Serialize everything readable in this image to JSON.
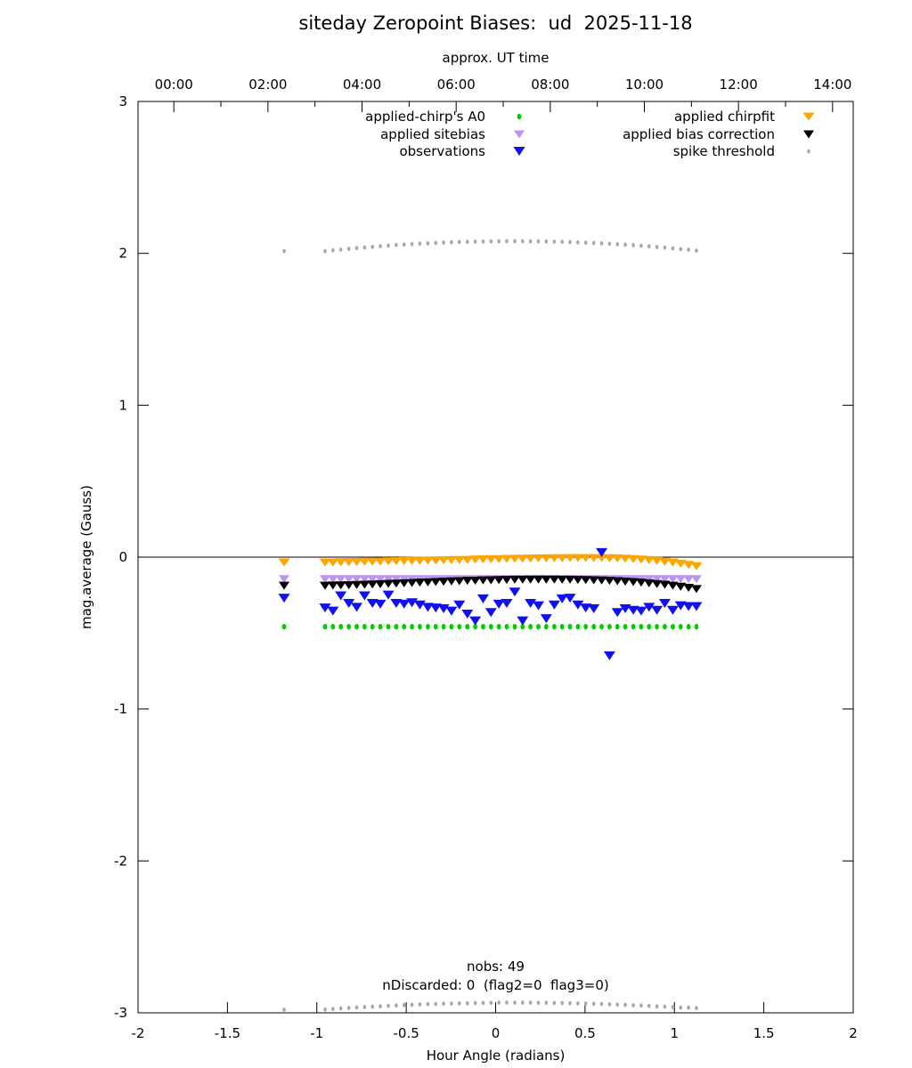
{
  "title": "siteday Zeropoint Biases:  ud  2025-11-18",
  "top_axis": {
    "label": "approx. UT time",
    "tick_labels": [
      "00:00",
      "02:00",
      "04:00",
      "06:00",
      "08:00",
      "10:00",
      "12:00",
      "14:00"
    ]
  },
  "y_axis": {
    "label": "mag.average (Gauss)",
    "tick_labels": [
      "3",
      "2",
      "1",
      "0",
      "-1",
      "-2",
      "-3"
    ],
    "tick_values": [
      3,
      2,
      1,
      0,
      -1,
      -2,
      -3
    ]
  },
  "x_axis": {
    "label": "Hour Angle (radians)",
    "tick_labels": [
      "-2",
      "-1.5",
      "-1",
      "-0.5",
      "0",
      "0.5",
      "1",
      "1.5",
      "2"
    ],
    "tick_values": [
      -2,
      -1.5,
      -1,
      -0.5,
      0,
      0.5,
      1,
      1.5,
      2
    ]
  },
  "annotations": {
    "nobs": "nobs: 49",
    "ndiscarded": "nDiscarded: 0  (flag2=0  flag3=0)"
  },
  "legend": {
    "left": [
      {
        "label": "applied-chirp's A0",
        "series_index": 0
      },
      {
        "label": "applied sitebias",
        "series_index": 2
      },
      {
        "label": "observations",
        "series_index": 4
      }
    ],
    "right": [
      {
        "label": "applied chirpfit",
        "series_index": 1
      },
      {
        "label": "applied bias correction",
        "series_index": 3
      },
      {
        "label": "spike threshold",
        "series_index": 5
      }
    ]
  },
  "chart_data": {
    "type": "scatter",
    "title": "siteday Zeropoint Biases:  ud  2025-11-18",
    "xlabel": "Hour Angle (radians)",
    "x2label": "approx. UT time",
    "ylabel": "mag.average (Gauss)",
    "xlim": [
      -2,
      2
    ],
    "ylim": [
      -3,
      3
    ],
    "grid": false,
    "legend_position": "top-inside",
    "nobs": 49,
    "ndiscarded": 0,
    "x": [
      -1.183,
      -0.954,
      -0.91,
      -0.866,
      -0.821,
      -0.777,
      -0.733,
      -0.689,
      -0.645,
      -0.6,
      -0.556,
      -0.512,
      -0.468,
      -0.424,
      -0.379,
      -0.335,
      -0.291,
      -0.247,
      -0.203,
      -0.158,
      -0.114,
      -0.07,
      -0.026,
      0.018,
      0.062,
      0.107,
      0.151,
      0.195,
      0.239,
      0.283,
      0.328,
      0.372,
      0.416,
      0.46,
      0.504,
      0.549,
      0.593,
      0.637,
      0.681,
      0.725,
      0.77,
      0.814,
      0.858,
      0.902,
      0.946,
      0.991,
      1.035,
      1.079,
      1.123
    ],
    "series": [
      {
        "key": "a0",
        "name": "applied-chirp's A0",
        "marker": "dot",
        "color": "#00cd00",
        "values": [
          -0.458,
          -0.458,
          -0.458,
          -0.458,
          -0.458,
          -0.458,
          -0.458,
          -0.458,
          -0.458,
          -0.458,
          -0.458,
          -0.458,
          -0.458,
          -0.458,
          -0.458,
          -0.458,
          -0.458,
          -0.458,
          -0.458,
          -0.458,
          -0.458,
          -0.458,
          -0.458,
          -0.458,
          -0.458,
          -0.458,
          -0.458,
          -0.458,
          -0.458,
          -0.458,
          -0.458,
          -0.458,
          -0.458,
          -0.458,
          -0.458,
          -0.458,
          -0.458,
          -0.458,
          -0.458,
          -0.458,
          -0.458,
          -0.458,
          -0.458,
          -0.458,
          -0.458,
          -0.458,
          -0.458,
          -0.458,
          -0.458
        ]
      },
      {
        "key": "chirpfit",
        "name": "applied chirpfit",
        "marker": "triangle-down",
        "color": "#ffa500",
        "values": [
          -0.035,
          -0.035,
          -0.035,
          -0.034,
          -0.033,
          -0.032,
          -0.031,
          -0.03,
          -0.029,
          -0.028,
          -0.027,
          -0.026,
          -0.025,
          -0.024,
          -0.023,
          -0.022,
          -0.021,
          -0.02,
          -0.019,
          -0.018,
          -0.016,
          -0.015,
          -0.014,
          -0.013,
          -0.012,
          -0.011,
          -0.01,
          -0.009,
          -0.008,
          -0.008,
          -0.007,
          -0.007,
          -0.006,
          -0.006,
          -0.006,
          -0.006,
          -0.006,
          -0.007,
          -0.008,
          -0.01,
          -0.013,
          -0.016,
          -0.02,
          -0.025,
          -0.03,
          -0.036,
          -0.043,
          -0.051,
          -0.06
        ]
      },
      {
        "key": "sitebias",
        "name": "applied sitebias",
        "marker": "triangle-down",
        "color": "#bf94f0",
        "values": [
          -0.145,
          -0.145,
          -0.145,
          -0.145,
          -0.145,
          -0.145,
          -0.145,
          -0.145,
          -0.145,
          -0.145,
          -0.145,
          -0.145,
          -0.145,
          -0.145,
          -0.145,
          -0.145,
          -0.145,
          -0.145,
          -0.145,
          -0.145,
          -0.145,
          -0.145,
          -0.145,
          -0.145,
          -0.145,
          -0.145,
          -0.145,
          -0.145,
          -0.145,
          -0.145,
          -0.145,
          -0.145,
          -0.145,
          -0.145,
          -0.145,
          -0.145,
          -0.145,
          -0.145,
          -0.145,
          -0.145,
          -0.145,
          -0.145,
          -0.145,
          -0.145,
          -0.145,
          -0.145,
          -0.145,
          -0.145,
          -0.145
        ]
      },
      {
        "key": "bias_correction",
        "name": "applied bias correction",
        "marker": "triangle-down",
        "color": "#000000",
        "values": [
          -0.188,
          -0.188,
          -0.187,
          -0.186,
          -0.185,
          -0.183,
          -0.182,
          -0.18,
          -0.178,
          -0.176,
          -0.174,
          -0.172,
          -0.17,
          -0.168,
          -0.166,
          -0.164,
          -0.162,
          -0.16,
          -0.158,
          -0.156,
          -0.155,
          -0.153,
          -0.152,
          -0.151,
          -0.15,
          -0.149,
          -0.149,
          -0.148,
          -0.148,
          -0.148,
          -0.148,
          -0.149,
          -0.149,
          -0.15,
          -0.151,
          -0.152,
          -0.154,
          -0.156,
          -0.158,
          -0.161,
          -0.164,
          -0.168,
          -0.172,
          -0.177,
          -0.182,
          -0.188,
          -0.195,
          -0.202,
          -0.21
        ]
      },
      {
        "key": "observations",
        "name": "observations",
        "marker": "triangle-down",
        "color": "#1010f0",
        "values": [
          -0.27,
          -0.335,
          -0.355,
          -0.255,
          -0.305,
          -0.33,
          -0.255,
          -0.305,
          -0.31,
          -0.25,
          -0.305,
          -0.31,
          -0.3,
          -0.315,
          -0.33,
          -0.335,
          -0.34,
          -0.355,
          -0.315,
          -0.375,
          -0.42,
          -0.275,
          -0.365,
          -0.31,
          -0.305,
          -0.23,
          -0.42,
          -0.305,
          -0.32,
          -0.405,
          -0.315,
          -0.275,
          -0.27,
          -0.315,
          -0.335,
          -0.34,
          0.03,
          -0.65,
          -0.365,
          -0.34,
          -0.35,
          -0.355,
          -0.33,
          -0.35,
          -0.305,
          -0.35,
          -0.32,
          -0.325,
          -0.325
        ]
      },
      {
        "key": "spike",
        "name": "spike threshold",
        "marker": "small-dot",
        "color": "#a8a8a8",
        "values_upper": [
          2.015,
          2.014,
          2.02,
          2.025,
          2.03,
          2.035,
          2.039,
          2.043,
          2.047,
          2.051,
          2.055,
          2.058,
          2.061,
          2.064,
          2.066,
          2.069,
          2.071,
          2.073,
          2.075,
          2.076,
          2.077,
          2.078,
          2.079,
          2.08,
          2.08,
          2.08,
          2.08,
          2.079,
          2.079,
          2.078,
          2.077,
          2.076,
          2.074,
          2.072,
          2.07,
          2.068,
          2.066,
          2.063,
          2.06,
          2.057,
          2.054,
          2.05,
          2.046,
          2.042,
          2.038,
          2.033,
          2.028,
          2.024,
          2.018
        ],
        "values_lower": [
          -2.98,
          -2.978,
          -2.975,
          -2.971,
          -2.968,
          -2.965,
          -2.962,
          -2.959,
          -2.957,
          -2.954,
          -2.952,
          -2.949,
          -2.947,
          -2.945,
          -2.943,
          -2.942,
          -2.94,
          -2.939,
          -2.938,
          -2.937,
          -2.936,
          -2.935,
          -2.934,
          -2.933,
          -2.933,
          -2.933,
          -2.933,
          -2.933,
          -2.934,
          -2.934,
          -2.935,
          -2.936,
          -2.937,
          -2.938,
          -2.939,
          -2.941,
          -2.942,
          -2.944,
          -2.946,
          -2.948,
          -2.95,
          -2.952,
          -2.955,
          -2.958,
          -2.96,
          -2.963,
          -2.966,
          -2.966,
          -2.969
        ]
      }
    ]
  }
}
